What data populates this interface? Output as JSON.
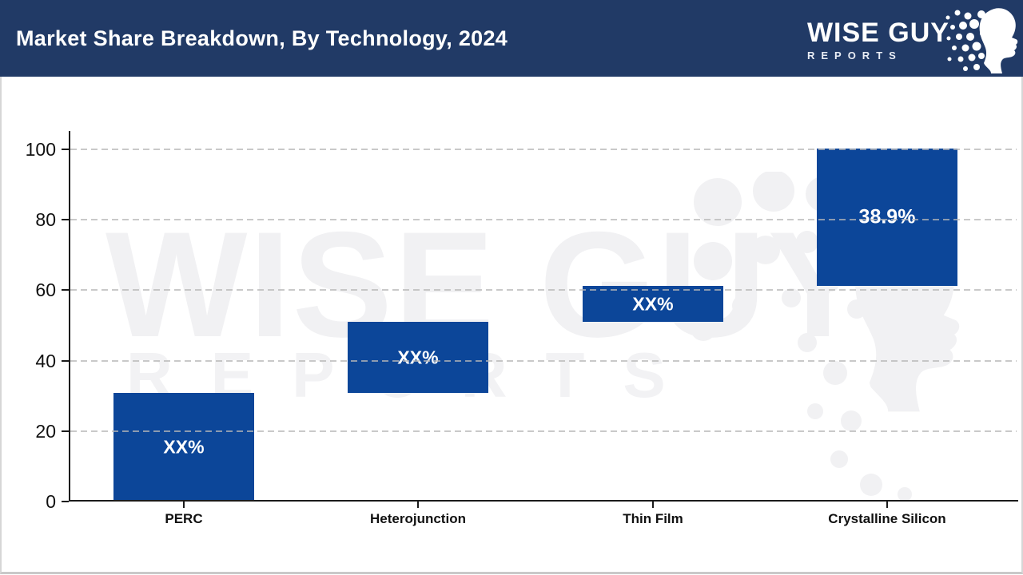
{
  "header": {
    "title": "Market Share Breakdown, By Technology, 2024",
    "logo": {
      "line1": "WISE GUY",
      "line2": "REPORTS"
    }
  },
  "watermark": {
    "line1": "WISE GUY",
    "line2": "REPORTS"
  },
  "colors": {
    "header_bg": "#213a66",
    "bar_blue": "#0c4699",
    "grid_gray": "#b7b7b7",
    "axis_black": "#1a1a1a",
    "watermark_gray": "#f1f1f3",
    "frame_gray": "#c9c9c9"
  },
  "chart_data": {
    "type": "bar",
    "subtype": "waterfall",
    "title": "Market Share Breakdown, By Technology, 2024",
    "categories": [
      "PERC",
      "Heterojunction",
      "Thin Film",
      "Crystalline Silicon"
    ],
    "segments": [
      {
        "category": "PERC",
        "label": "XX%",
        "start": 0,
        "end": 30.7
      },
      {
        "category": "Heterojunction",
        "label": "XX%",
        "start": 30.7,
        "end": 50.9
      },
      {
        "category": "Thin Film",
        "label": "XX%",
        "start": 50.9,
        "end": 61.1
      },
      {
        "category": "Crystalline Silicon",
        "label": "38.9%",
        "start": 61.1,
        "end": 100
      }
    ],
    "y_ticks": [
      0,
      20,
      40,
      60,
      80,
      100
    ],
    "ylim": [
      0,
      105
    ],
    "xlabel": "",
    "ylabel": "",
    "grid": "horizontal-dashed-above-bars",
    "legend": "none",
    "bar_color": "#0c4699"
  }
}
